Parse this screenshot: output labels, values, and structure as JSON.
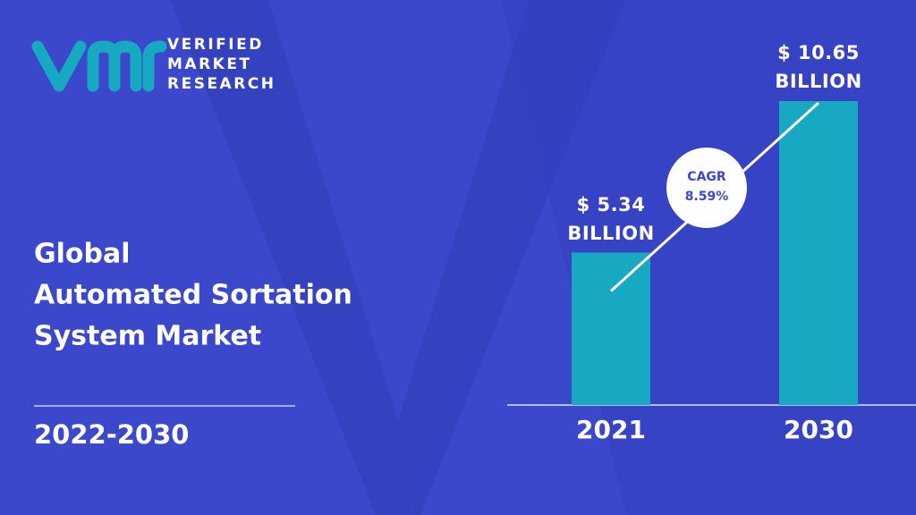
{
  "header": {
    "logo": [
      "VERIFIED",
      "MARKET",
      "RESEARCH"
    ]
  },
  "chart_data": {
    "type": "bar",
    "title": [
      "Global",
      "Automated Sortation",
      "System Market"
    ],
    "subtitle": "2022-2030",
    "categories": [
      "2021",
      "2030"
    ],
    "values": [
      5.34,
      10.65
    ],
    "value_labels": [
      "$ 5.34 BILLION",
      "$ 10.65 BILLION"
    ],
    "color": "#17a9c1",
    "annotations": [
      "CAGR",
      "8.59%"
    ]
  }
}
